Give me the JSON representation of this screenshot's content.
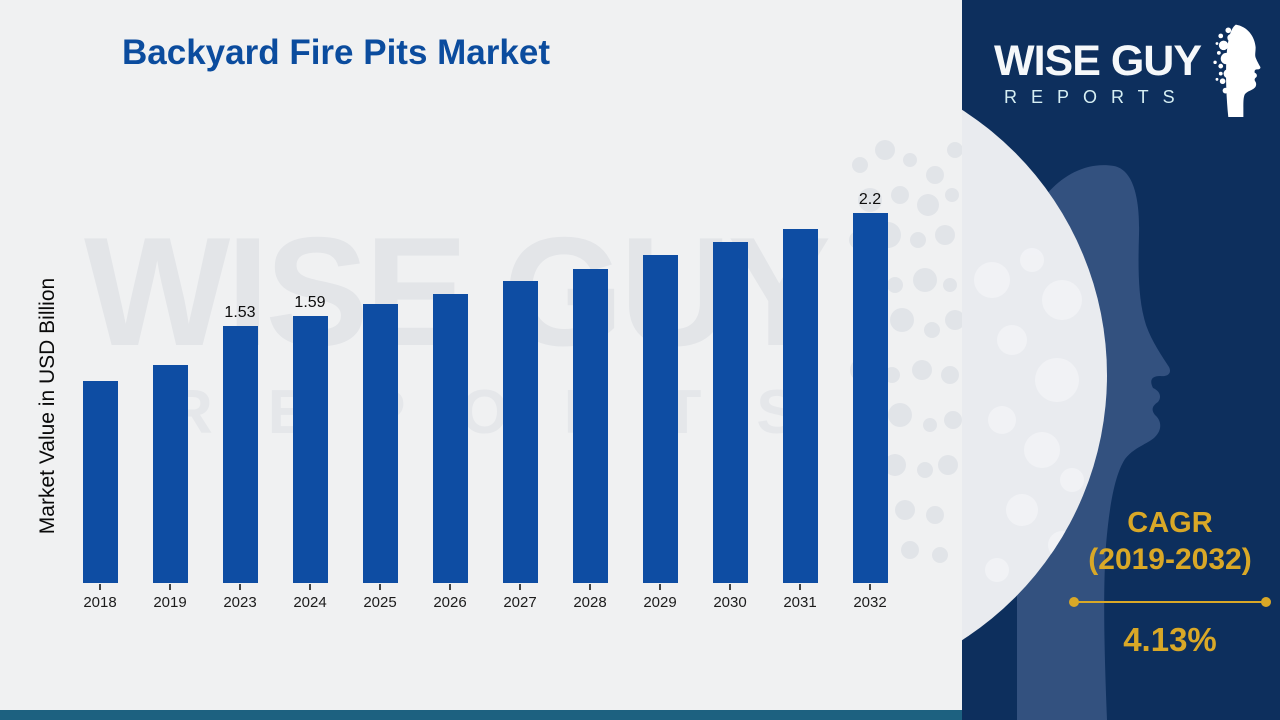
{
  "page": {
    "background": "#f0f1f2",
    "bottom_strip_color": "#1d6180",
    "panel_color": "#0d2f5d"
  },
  "header": {
    "title": "Backyard Fire Pits Market",
    "title_color": "#0b4c9e"
  },
  "chart_data": {
    "type": "bar",
    "title": "Backyard Fire Pits Market",
    "categories": [
      "2018",
      "2019",
      "2023",
      "2024",
      "2025",
      "2026",
      "2027",
      "2028",
      "2029",
      "2030",
      "2031",
      "2032"
    ],
    "values": [
      1.2,
      1.3,
      1.53,
      1.59,
      1.66,
      1.72,
      1.8,
      1.87,
      1.95,
      2.03,
      2.11,
      2.2
    ],
    "bar_labels": [
      "",
      "",
      "1.53",
      "1.59",
      "",
      "",
      "",
      "",
      "",
      "",
      "",
      "2.2"
    ],
    "xlabel": "",
    "ylabel": "Market Value in USD Billion",
    "ylim": [
      0,
      2.6
    ],
    "grid": false,
    "legend": "none",
    "bar_color": "#0e4da3"
  },
  "watermark": {
    "line1": "WISE GUY",
    "line2": "REPORTS"
  },
  "logo": {
    "line1": "WISE GUY",
    "line2": "REPORTS"
  },
  "cagr": {
    "label": "CAGR",
    "range": "(2019-2032)",
    "value": "4.13%",
    "accent_color": "#d9a827"
  }
}
